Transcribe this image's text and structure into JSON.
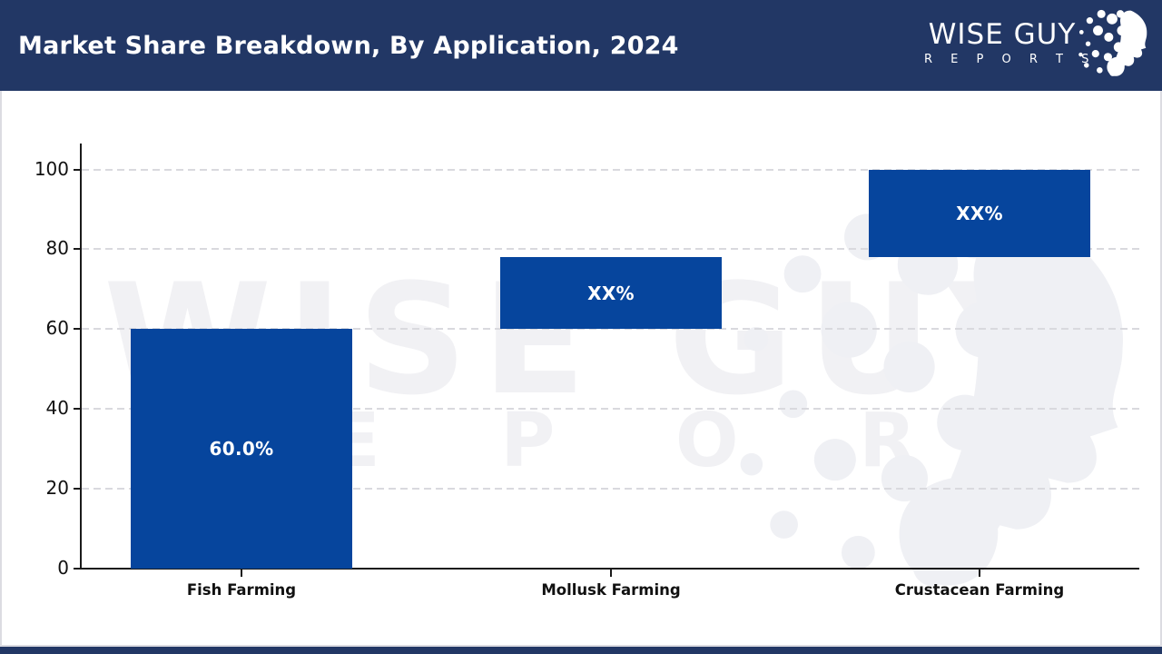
{
  "header": {
    "title": "Market Share Breakdown, By Application, 2024",
    "logo": {
      "line1": "WISE GUY",
      "line2": "R E P O R T S"
    }
  },
  "watermark": {
    "line1": "WISE GUY",
    "line2": "R E P O R T S"
  },
  "chart_data": {
    "type": "bar",
    "subtype": "waterfall",
    "title": "Market Share Breakdown, By Application, 2024",
    "categories": [
      "Fish Farming",
      "Mollusk Farming",
      "Crustacean Farming"
    ],
    "segments": [
      {
        "category": "Fish Farming",
        "start": 0,
        "end": 60,
        "label": "60.0%"
      },
      {
        "category": "Mollusk Farming",
        "start": 60,
        "end": 78,
        "label": "XX%"
      },
      {
        "category": "Crustacean Farming",
        "start": 78,
        "end": 100,
        "label": "XX%"
      }
    ],
    "yticks": [
      0,
      20,
      40,
      60,
      80,
      100
    ],
    "ylim": [
      0,
      106
    ],
    "xlabel": "",
    "ylabel": "",
    "grid": "dashed horizontal",
    "legend": "none",
    "bar_color": "#06459d",
    "bar_label_color": "#ffffff",
    "axis_color": "#1a1a1a"
  },
  "colors": {
    "header_bg": "#223765",
    "footer_bg": "#223765",
    "watermark": "#f0f1f4",
    "grid": "#d9d9de"
  }
}
